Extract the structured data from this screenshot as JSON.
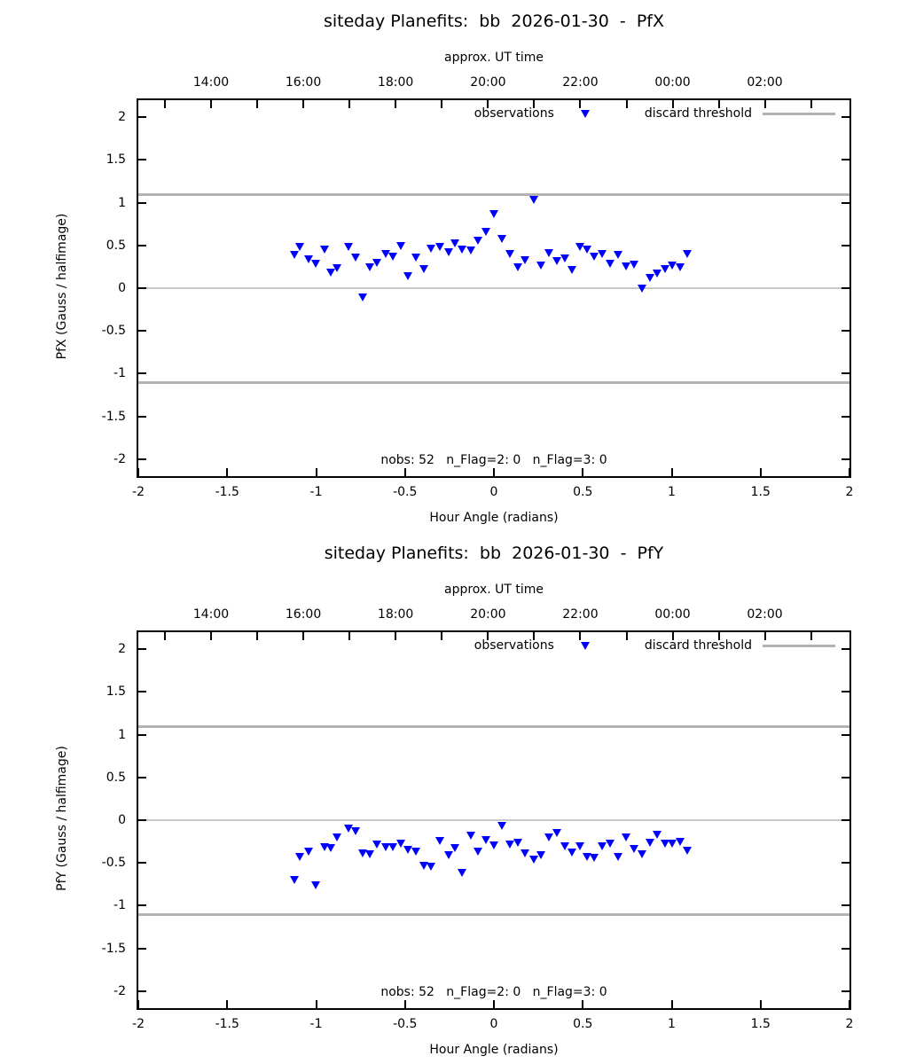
{
  "colors": {
    "marker_blue": "#0000ff",
    "threshold_gray": "#b2b2b2",
    "zero_line_gray": "#c8c8c8",
    "axis_black": "#000000",
    "background": "#ffffff"
  },
  "charts": [
    {
      "title": "siteday Planefits:  bb  2026-01-30  -  PfX",
      "x2_axis_label": "approx. UT time",
      "x_axis_label": "Hour Angle (radians)",
      "y_axis_label": "PfX (Gauss / halfimage)",
      "stats_text": "nobs: 52   n_Flag=2: 0   n_Flag=3: 0",
      "legend": [
        {
          "label": "observations",
          "marker": "blue-filled-down-triangle"
        },
        {
          "label": "discard threshold",
          "marker": "gray-line"
        }
      ],
      "chart_data": {
        "type": "scatter",
        "marker": "filled-triangle-down",
        "marker_color": "#0000ff",
        "title": "siteday Planefits:  bb  2026-01-30  -  PfX",
        "xlabel": "Hour Angle (radians)",
        "x2label": "approx. UT time",
        "ylabel": "PfX (Gauss / halfimage)",
        "xlim": [
          -2,
          2
        ],
        "ylim": [
          -2.2,
          2.2
        ],
        "grid": false,
        "legend_position": "top-right-inside",
        "nobs": 52,
        "n_flag_2": 0,
        "n_flag_3": 0,
        "threshold_lines_y": [
          1.1,
          -1.1
        ],
        "zero_line_y": 0,
        "x_ticks": [
          -2,
          -1.5,
          -1,
          -0.5,
          0,
          0.5,
          1,
          1.5,
          2
        ],
        "y_ticks": [
          -2,
          -1.5,
          -1,
          -0.5,
          0,
          0.5,
          1,
          1.5,
          2
        ],
        "x2_ticks_labeled": [
          {
            "label": "14:00",
            "x": -1.591
          },
          {
            "label": "16:00",
            "x": -1.072
          },
          {
            "label": "18:00",
            "x": -0.553
          },
          {
            "label": "20:00",
            "x": -0.033
          },
          {
            "label": "22:00",
            "x": 0.486
          },
          {
            "label": "00:00",
            "x": 1.005
          },
          {
            "label": "02:00",
            "x": 1.524
          }
        ],
        "x2_ticks_minor": [
          -1.851,
          -1.331,
          -0.812,
          -0.293,
          0.226,
          0.746,
          1.265,
          1.784
        ],
        "x": [
          -1.12,
          -1.09,
          -1.04,
          -1.0,
          -0.95,
          -0.915,
          -0.88,
          -0.815,
          -0.775,
          -0.735,
          -0.695,
          -0.655,
          -0.605,
          -0.565,
          -0.52,
          -0.48,
          -0.435,
          -0.39,
          -0.35,
          -0.3,
          -0.25,
          -0.215,
          -0.175,
          -0.125,
          -0.085,
          -0.04,
          0.0,
          0.045,
          0.09,
          0.135,
          0.175,
          0.225,
          0.265,
          0.31,
          0.355,
          0.4,
          0.44,
          0.485,
          0.525,
          0.565,
          0.61,
          0.655,
          0.7,
          0.745,
          0.79,
          0.835,
          0.88,
          0.92,
          0.965,
          1.005,
          1.05,
          1.09
        ],
        "y": [
          0.39,
          0.48,
          0.34,
          0.29,
          0.45,
          0.18,
          0.23,
          0.48,
          0.36,
          -0.11,
          0.24,
          0.3,
          0.4,
          0.37,
          0.49,
          0.14,
          0.36,
          0.22,
          0.46,
          0.48,
          0.42,
          0.52,
          0.45,
          0.44,
          0.56,
          0.66,
          0.87,
          0.58,
          0.4,
          0.24,
          0.33,
          1.03,
          0.26,
          0.41,
          0.32,
          0.35,
          0.21,
          0.48,
          0.45,
          0.37,
          0.4,
          0.29,
          0.39,
          0.25,
          0.28,
          0.0,
          0.12,
          0.17,
          0.22,
          0.26,
          0.24,
          0.4
        ]
      }
    },
    {
      "title": "siteday Planefits:  bb  2026-01-30  -  PfY",
      "x2_axis_label": "approx. UT time",
      "x_axis_label": "Hour Angle (radians)",
      "y_axis_label": "PfY (Gauss / halfimage)",
      "stats_text": "nobs: 52   n_Flag=2: 0   n_Flag=3: 0",
      "legend": [
        {
          "label": "observations",
          "marker": "blue-filled-down-triangle"
        },
        {
          "label": "discard threshold",
          "marker": "gray-line"
        }
      ],
      "chart_data": {
        "type": "scatter",
        "marker": "filled-triangle-down",
        "marker_color": "#0000ff",
        "title": "siteday Planefits:  bb  2026-01-30  -  PfY",
        "xlabel": "Hour Angle (radians)",
        "x2label": "approx. UT time",
        "ylabel": "PfY (Gauss / halfimage)",
        "xlim": [
          -2,
          2
        ],
        "ylim": [
          -2.2,
          2.2
        ],
        "grid": false,
        "legend_position": "top-right-inside",
        "nobs": 52,
        "n_flag_2": 0,
        "n_flag_3": 0,
        "threshold_lines_y": [
          1.1,
          -1.1
        ],
        "zero_line_y": 0,
        "x_ticks": [
          -2,
          -1.5,
          -1,
          -0.5,
          0,
          0.5,
          1,
          1.5,
          2
        ],
        "y_ticks": [
          -2,
          -1.5,
          -1,
          -0.5,
          0,
          0.5,
          1,
          1.5,
          2
        ],
        "x2_ticks_labeled": [
          {
            "label": "14:00",
            "x": -1.591
          },
          {
            "label": "16:00",
            "x": -1.072
          },
          {
            "label": "18:00",
            "x": -0.553
          },
          {
            "label": "20:00",
            "x": -0.033
          },
          {
            "label": "22:00",
            "x": 0.486
          },
          {
            "label": "00:00",
            "x": 1.005
          },
          {
            "label": "02:00",
            "x": 1.524
          }
        ],
        "x2_ticks_minor": [
          -1.851,
          -1.331,
          -0.812,
          -0.293,
          0.226,
          0.746,
          1.265,
          1.784
        ],
        "x": [
          -1.12,
          -1.09,
          -1.04,
          -1.0,
          -0.95,
          -0.915,
          -0.88,
          -0.815,
          -0.775,
          -0.735,
          -0.695,
          -0.655,
          -0.605,
          -0.565,
          -0.52,
          -0.48,
          -0.435,
          -0.39,
          -0.35,
          -0.3,
          -0.25,
          -0.215,
          -0.175,
          -0.125,
          -0.085,
          -0.04,
          0.0,
          0.045,
          0.09,
          0.135,
          0.175,
          0.225,
          0.265,
          0.31,
          0.355,
          0.4,
          0.44,
          0.485,
          0.525,
          0.565,
          0.61,
          0.655,
          0.7,
          0.745,
          0.79,
          0.835,
          0.88,
          0.92,
          0.965,
          1.005,
          1.05,
          1.09
        ],
        "y": [
          -0.7,
          -0.43,
          -0.37,
          -0.76,
          -0.32,
          -0.33,
          -0.2,
          -0.1,
          -0.13,
          -0.39,
          -0.4,
          -0.29,
          -0.32,
          -0.32,
          -0.28,
          -0.35,
          -0.37,
          -0.53,
          -0.54,
          -0.24,
          -0.41,
          -0.33,
          -0.62,
          -0.18,
          -0.37,
          -0.23,
          -0.3,
          -0.07,
          -0.29,
          -0.26,
          -0.39,
          -0.46,
          -0.41,
          -0.2,
          -0.15,
          -0.31,
          -0.38,
          -0.31,
          -0.43,
          -0.44,
          -0.31,
          -0.28,
          -0.43,
          -0.2,
          -0.34,
          -0.4,
          -0.26,
          -0.17,
          -0.27,
          -0.27,
          -0.25,
          -0.36
        ]
      }
    }
  ]
}
